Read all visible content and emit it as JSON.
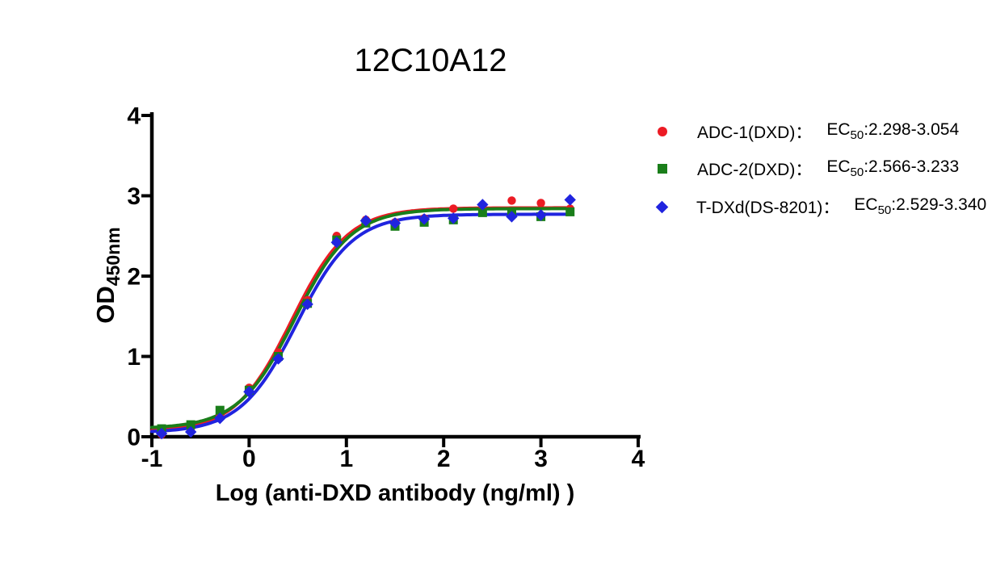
{
  "title": "12C10A12",
  "axes": {
    "y_label_main": "OD",
    "y_label_sub": "450nm",
    "x_label": "Log (anti-DXD antibody (ng/ml) )"
  },
  "colors": {
    "red": "#EC1B24",
    "green": "#1A7E1A",
    "blue": "#2024DF",
    "axis": "#000000",
    "background": "#FFFFFF"
  },
  "legend": {
    "position": "right",
    "items": [
      {
        "name": "ADC-1(DXD)：",
        "ec_prefix": "EC",
        "ec_sub": "50",
        "ec_value": ":2.298-3.054",
        "marker": "circle",
        "color": "#EC1B24"
      },
      {
        "name": "ADC-2(DXD)：",
        "ec_prefix": "EC",
        "ec_sub": "50",
        "ec_value": ":2.566-3.233",
        "marker": "square",
        "color": "#1A7E1A"
      },
      {
        "name": "T-DXd(DS-8201)：",
        "ec_prefix": "EC",
        "ec_sub": "50",
        "ec_value": ":2.529-3.340",
        "marker": "diamond",
        "color": "#2024DF"
      }
    ]
  },
  "chart_data": {
    "type": "scatter",
    "subtype": "dose-response-sigmoid-fit",
    "title": "12C10A12",
    "xlabel": "Log (anti-DXD antibody (ng/ml) )",
    "ylabel": "OD450nm",
    "xlim": [
      -1,
      4
    ],
    "ylim": [
      0,
      4
    ],
    "xticks": [
      -1,
      0,
      1,
      2,
      3,
      4
    ],
    "yticks": [
      0,
      1,
      2,
      3,
      4
    ],
    "grid": false,
    "legend_position": "right",
    "curve_model": "four_parameter_logistic",
    "curve_x_range": [
      -1.0,
      3.32
    ],
    "x": [
      -0.9,
      -0.6,
      -0.3,
      0,
      0.3,
      0.6,
      0.9,
      1.2,
      1.5,
      1.8,
      2.1,
      2.4,
      2.7,
      3.0,
      3.3
    ],
    "series": [
      {
        "name": "ADC-1(DXD)",
        "marker": "circle",
        "color": "#EC1B24",
        "ec50_range": "2.298-3.054",
        "y": [
          0.03,
          0.07,
          0.26,
          0.61,
          1.05,
          1.7,
          2.5,
          2.7,
          2.67,
          2.72,
          2.84,
          2.83,
          2.94,
          2.91,
          2.84
        ],
        "fit": {
          "bottom": 0.06,
          "top": 2.85,
          "logec50": 0.44,
          "hill": 1.5
        }
      },
      {
        "name": "ADC-2(DXD)",
        "marker": "square",
        "color": "#1A7E1A",
        "ec50_range": "2.566-3.233",
        "y": [
          0.1,
          0.15,
          0.33,
          0.58,
          1.0,
          1.66,
          2.45,
          2.66,
          2.62,
          2.67,
          2.7,
          2.79,
          2.78,
          2.74,
          2.8
        ],
        "fit": {
          "bottom": 0.1,
          "top": 2.84,
          "logec50": 0.47,
          "hill": 1.5
        }
      },
      {
        "name": "T-DXd(DS-8201)",
        "marker": "diamond",
        "color": "#2024DF",
        "ec50_range": "2.529-3.340",
        "y": [
          0.04,
          0.06,
          0.23,
          0.56,
          0.97,
          1.65,
          2.42,
          2.69,
          2.66,
          2.71,
          2.72,
          2.89,
          2.74,
          2.76,
          2.95
        ],
        "fit": {
          "bottom": 0.05,
          "top": 2.77,
          "logec50": 0.49,
          "hill": 1.5
        }
      }
    ]
  }
}
